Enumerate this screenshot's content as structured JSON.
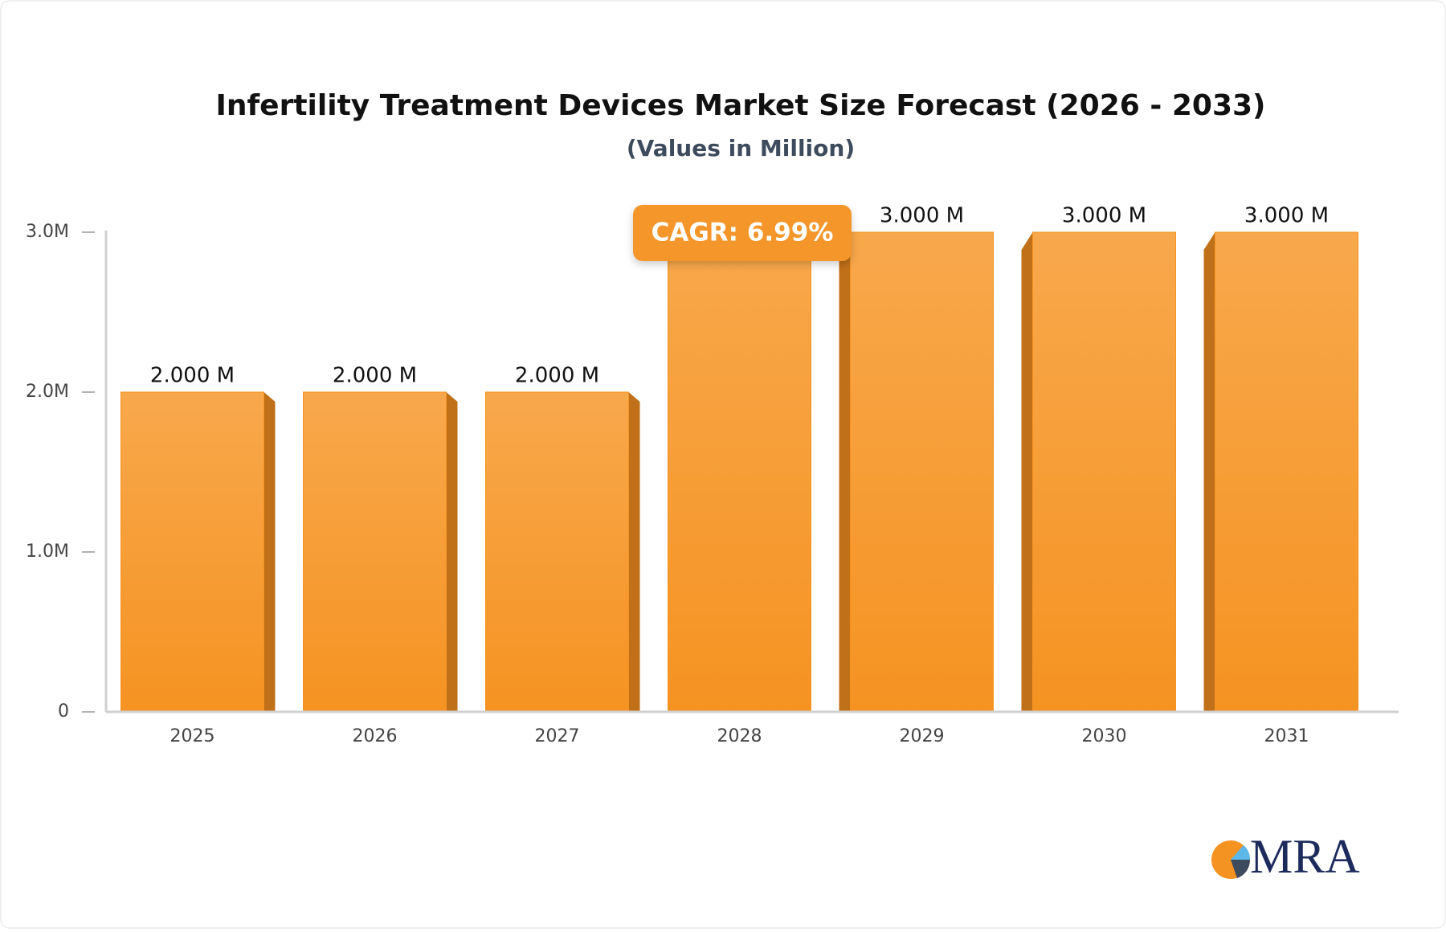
{
  "chart_data": {
    "type": "bar",
    "title": "Infertility Treatment Devices Market Size Forecast (2026 - 2033)",
    "subtitle": "(Values in Million)",
    "categories": [
      "2025",
      "2026",
      "2027",
      "2028",
      "2029",
      "2030",
      "2031"
    ],
    "values": [
      2,
      2,
      2,
      3,
      3,
      3,
      3
    ],
    "value_labels": [
      "2.000 M",
      "2.000 M",
      "2.000 M",
      null,
      "3.000 M",
      "3.000 M",
      "3.000 M"
    ],
    "color": "#f59322",
    "ylim": [
      0,
      3
    ],
    "yticks": [
      0,
      {
        "value": 1,
        "label": "1.0M"
      },
      {
        "value": 2,
        "label": "2.0M"
      },
      {
        "value": 3,
        "label": "3.0M"
      }
    ],
    "annotation": "CAGR: 6.99%",
    "logo": "MRA"
  }
}
